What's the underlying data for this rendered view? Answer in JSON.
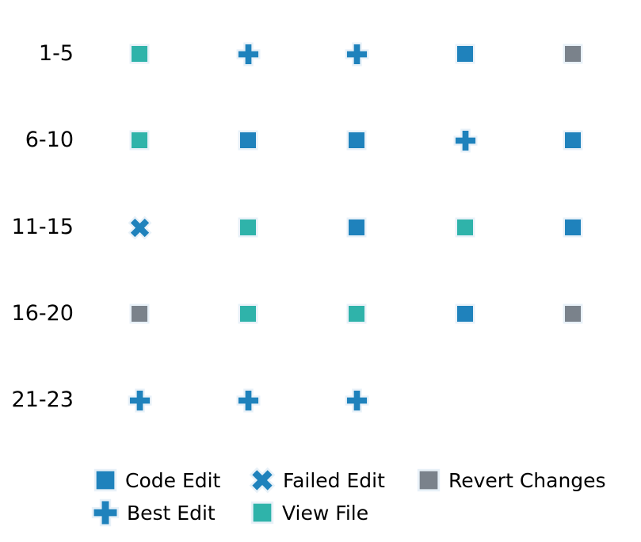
{
  "figure": {
    "background": "#ffffff"
  },
  "chart_data": {
    "type": "scatter",
    "title": "",
    "xlabel": "",
    "ylabel": "",
    "grid": false,
    "legend_position": "bottom",
    "description": "Categorical action-type matrix: each row is a group of step numbers, each cell marker encodes the action taken at that step.",
    "row_labels": [
      "1-5",
      "6-10",
      "11-15",
      "16-20",
      "21-23"
    ],
    "rows": [
      {
        "label": "1-5",
        "markers": [
          "view_file",
          "best_edit",
          "best_edit",
          "code_edit",
          "revert_changes"
        ]
      },
      {
        "label": "6-10",
        "markers": [
          "view_file",
          "code_edit",
          "code_edit",
          "best_edit",
          "code_edit"
        ]
      },
      {
        "label": "11-15",
        "markers": [
          "failed_edit",
          "view_file",
          "code_edit",
          "view_file",
          "code_edit"
        ]
      },
      {
        "label": "16-20",
        "markers": [
          "revert_changes",
          "view_file",
          "view_file",
          "code_edit",
          "revert_changes"
        ]
      },
      {
        "label": "21-23",
        "markers": [
          "best_edit",
          "best_edit",
          "best_edit"
        ]
      }
    ],
    "legend": [
      {
        "key": "code_edit",
        "label": "Code Edit",
        "shape": "square"
      },
      {
        "key": "failed_edit",
        "label": "Failed Edit",
        "shape": "x"
      },
      {
        "key": "revert_changes",
        "label": "Revert Changes",
        "shape": "square"
      },
      {
        "key": "best_edit",
        "label": "Best Edit",
        "shape": "plus"
      },
      {
        "key": "view_file",
        "label": "View File",
        "shape": "square"
      }
    ],
    "colors": {
      "code_edit": "#1F82BC",
      "failed_edit": "#1F82BC",
      "best_edit": "#1F82BC",
      "view_file": "#2FB3AA",
      "revert_changes": "#7A828B",
      "marker_edge": "#E8F1F8",
      "text": "#000000"
    }
  }
}
